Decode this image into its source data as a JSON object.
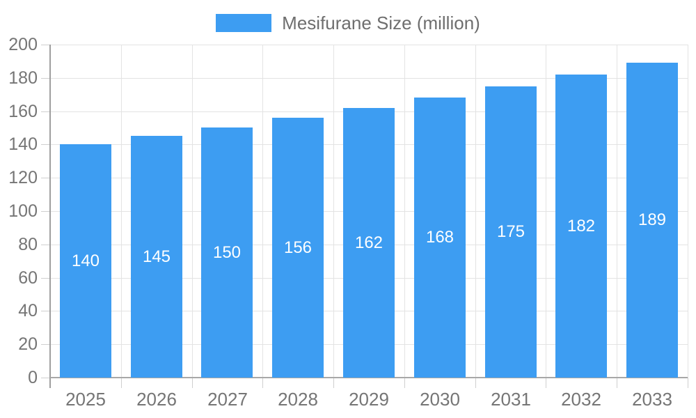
{
  "legend": {
    "label": "Mesifurane Size (million)"
  },
  "colors": {
    "bar": "#3d9df2",
    "bar_label_text": "#ffffff",
    "axis_text": "#757575",
    "legend_text": "#6e6e6e",
    "grid": "#e3e3e3",
    "tick": "#cfcfcf",
    "y_axis_line": "#9e9e9e",
    "baseline": "#a8a8a8",
    "background": "#ffffff"
  },
  "chart_data": {
    "type": "bar",
    "title": "",
    "categories": [
      "2025",
      "2026",
      "2027",
      "2028",
      "2029",
      "2030",
      "2031",
      "2032",
      "2033"
    ],
    "series": [
      {
        "name": "Mesifurane Size (million)",
        "values": [
          140,
          145,
          150,
          156,
          162,
          168,
          175,
          182,
          189
        ]
      }
    ],
    "bar_value_labels": [
      "140",
      "145",
      "150",
      "156",
      "162",
      "168",
      "175",
      "182",
      "189"
    ],
    "xlabel": "",
    "ylabel": "",
    "ylim": [
      0,
      200
    ],
    "ytick_step": 20,
    "ytick_labels": [
      "0",
      "20",
      "40",
      "60",
      "80",
      "100",
      "120",
      "140",
      "160",
      "180",
      "200"
    ],
    "grid": true,
    "legend_position": "top",
    "value_labels_position": "center-inside"
  }
}
